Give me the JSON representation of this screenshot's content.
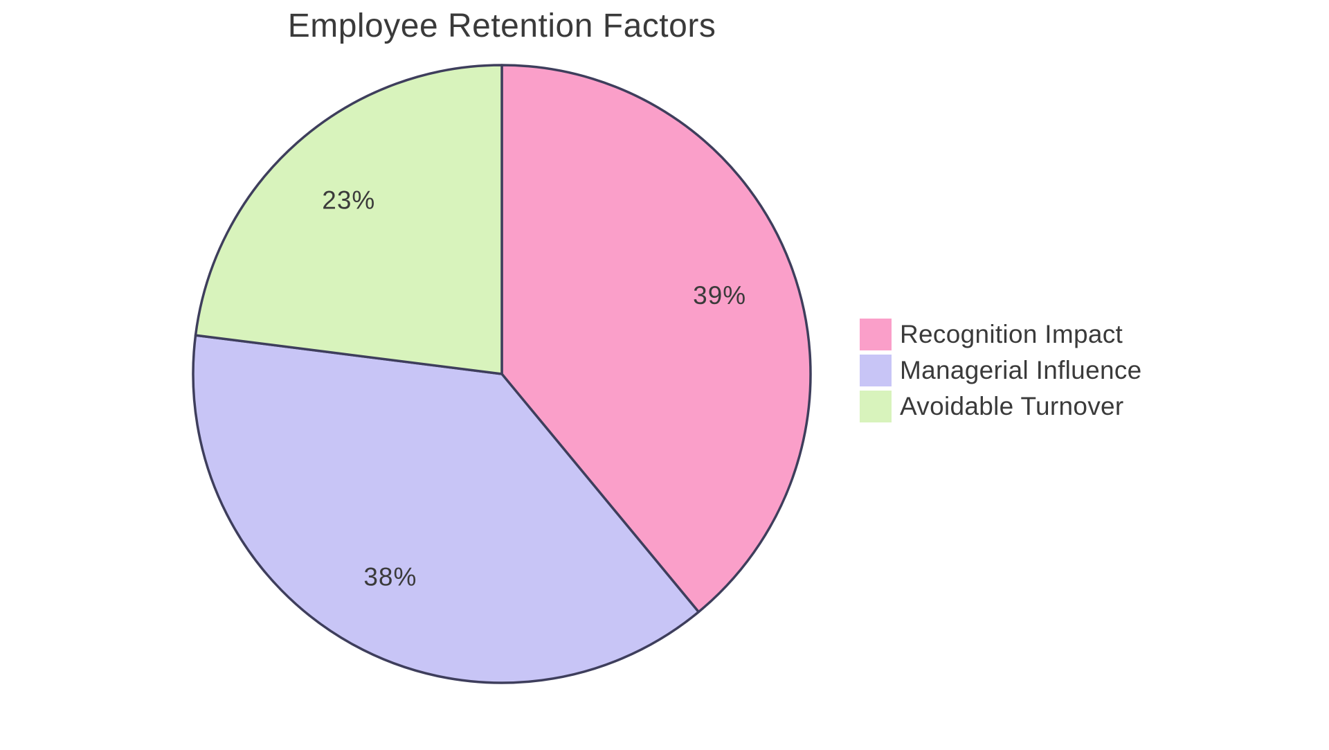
{
  "chart_data": {
    "type": "pie",
    "title": "Employee Retention Factors",
    "slices": [
      {
        "label": "Recognition Impact",
        "value": 39,
        "percent_label": "39%",
        "color": "#FA9FC9"
      },
      {
        "label": "Managerial Influence",
        "value": 38,
        "percent_label": "38%",
        "color": "#C8C5F6"
      },
      {
        "label": "Avoidable Turnover",
        "value": 23,
        "percent_label": "23%",
        "color": "#D8F3BC"
      }
    ],
    "start_angle_deg": 0,
    "direction": "clockwise",
    "legend_position": "right",
    "grid": false,
    "stroke_color": "#3E3E5C",
    "stroke_width": 3.5,
    "percent_label_color": "#3B3B3B",
    "title_color": "#3A3A3A",
    "background_color": "#FFFFFF"
  }
}
